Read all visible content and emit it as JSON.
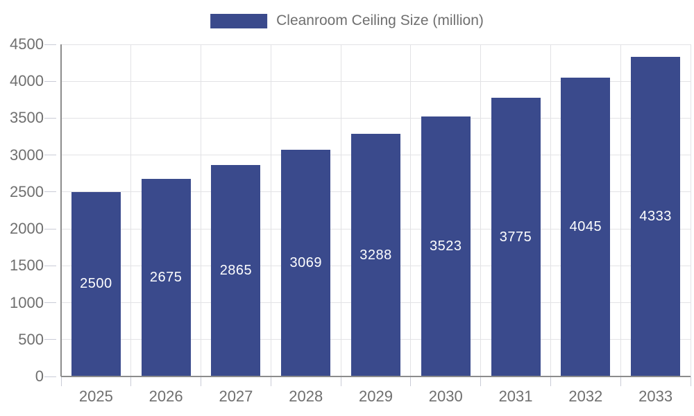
{
  "chart_data": {
    "type": "bar",
    "legend_label": "Cleanroom Ceiling Size (million)",
    "categories": [
      "2025",
      "2026",
      "2027",
      "2028",
      "2029",
      "2030",
      "2031",
      "2032",
      "2033"
    ],
    "values": [
      2500,
      2675,
      2865,
      3069,
      3288,
      3523,
      3775,
      4045,
      4333
    ],
    "value_labels": [
      "2500",
      "2675",
      "2865",
      "3069",
      "3288",
      "3523",
      "3775",
      "4045",
      "4333"
    ],
    "xlabel": "",
    "ylabel": "",
    "ylim": [
      0,
      4500
    ],
    "ytick_step": 500,
    "ytick_labels": [
      "0",
      "500",
      "1000",
      "1500",
      "2000",
      "2500",
      "3000",
      "3500",
      "4000",
      "4500"
    ],
    "grid": true,
    "legend_position": "top-center",
    "colors": {
      "bar_fill": "#3A4A8C",
      "bar_value_text": "#FFFFFF",
      "gridline": "#E2E2E5",
      "axis_line": "#8C8C8C",
      "tick_mark": "#C9CBD6",
      "axis_text": "#6F6F6F",
      "legend_text": "#6F6F6F",
      "background": "#FFFFFF"
    }
  }
}
